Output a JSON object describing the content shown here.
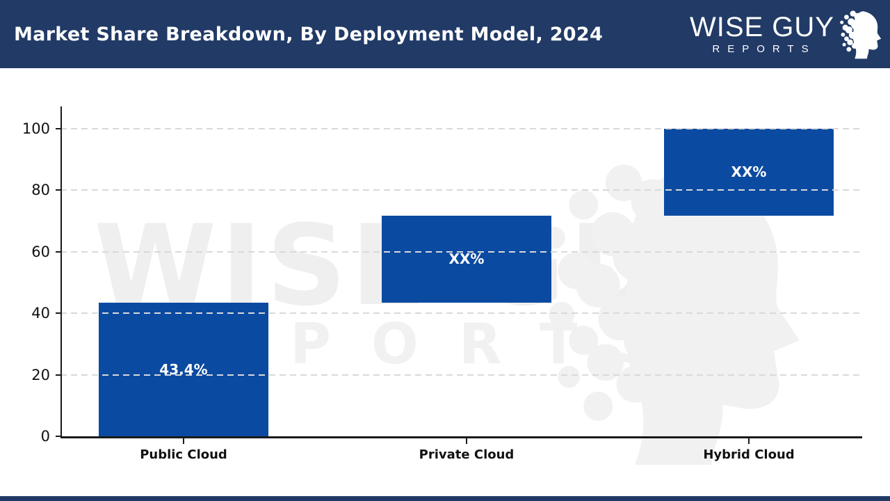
{
  "header": {
    "title": "Market Share Breakdown, By Deployment Model, 2024",
    "logo": {
      "wordmark": "WISE GUY",
      "sub": "REPORTS"
    }
  },
  "watermark": {
    "line1": "WISE GUY",
    "line2": "REPORTS"
  },
  "colors": {
    "header_bg": "#213a66",
    "bar": "#0b4aa1",
    "bar_label": "#ffffff",
    "grid": "#d9d9d9",
    "axis": "#1a1a1a",
    "watermark": "#efefef"
  },
  "chart_data": {
    "type": "bar",
    "variant": "waterfall",
    "title": "Market Share Breakdown, By Deployment Model, 2024",
    "xlabel": "",
    "ylabel": "",
    "categories": [
      "Public Cloud",
      "Private Cloud",
      "Hybrid Cloud"
    ],
    "segments": [
      {
        "category": "Public Cloud",
        "start": 0,
        "end": 43.4,
        "value": 43.4,
        "label": "43.4%"
      },
      {
        "category": "Private Cloud",
        "start": 43.4,
        "end": 71.8,
        "value": 28.4,
        "label": "XX%"
      },
      {
        "category": "Hybrid Cloud",
        "start": 71.8,
        "end": 100,
        "value": 28.2,
        "label": "XX%"
      }
    ],
    "ylim": [
      0,
      100
    ],
    "yticks": [
      0,
      20,
      40,
      60,
      80,
      100
    ],
    "grid": "horizontal-dashed",
    "legend": null,
    "bar_color": "#0b4aa1",
    "label_color": "#ffffff"
  }
}
